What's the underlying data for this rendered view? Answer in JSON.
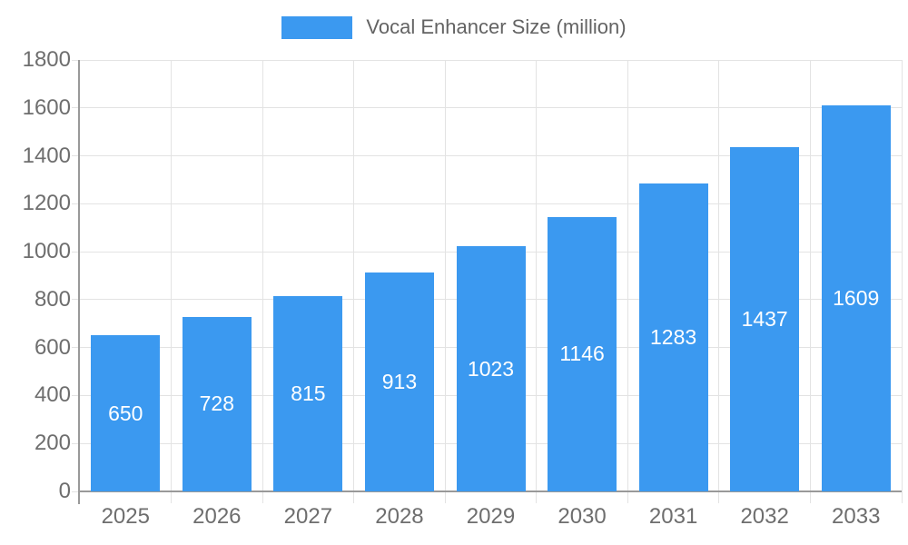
{
  "chart_data": {
    "type": "bar",
    "title": "Vocal Enhancer Size (million)",
    "legend": [
      "Vocal Enhancer Size (million)"
    ],
    "legend_position": "top-center",
    "categories": [
      "2025",
      "2026",
      "2027",
      "2028",
      "2029",
      "2030",
      "2031",
      "2032",
      "2033"
    ],
    "values": [
      650,
      728,
      815,
      913,
      1023,
      1146,
      1283,
      1437,
      1609
    ],
    "xlabel": "",
    "ylabel": "",
    "ylim": [
      0,
      1800
    ],
    "ytick_step": 200,
    "grid": true,
    "bar_color": "#3B99F0",
    "bar_label_color": "#FFFFFF",
    "axis_text_color": "#6E6E6E",
    "grid_color": "#E3E3E3",
    "axis_line_color": "#999999",
    "background_color": "#FFFFFF"
  }
}
